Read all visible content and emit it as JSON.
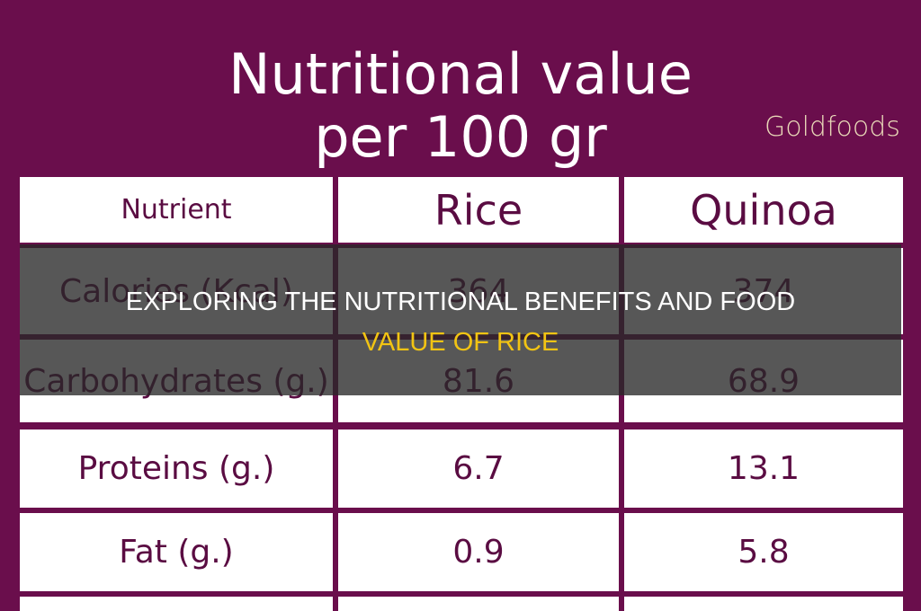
{
  "title": [
    "Nutritional value",
    "per 100 gr"
  ],
  "logo": "Goldfoods",
  "table": {
    "header": [
      "Nutrient",
      "Rice",
      "Quinoa"
    ],
    "rows": [
      [
        "Calories (Kcal)",
        "364",
        "374"
      ],
      [
        "Carbohydrates (g.)",
        "81.6",
        "68.9"
      ],
      [
        "Proteins (g.)",
        "6.7",
        "13.1"
      ],
      [
        "Fat (g.)",
        "0.9",
        "5.8"
      ]
    ]
  },
  "overlay": [
    "EXPLORING THE NUTRITIONAL BENEFITS AND FOOD",
    "VALUE OF RICE"
  ]
}
